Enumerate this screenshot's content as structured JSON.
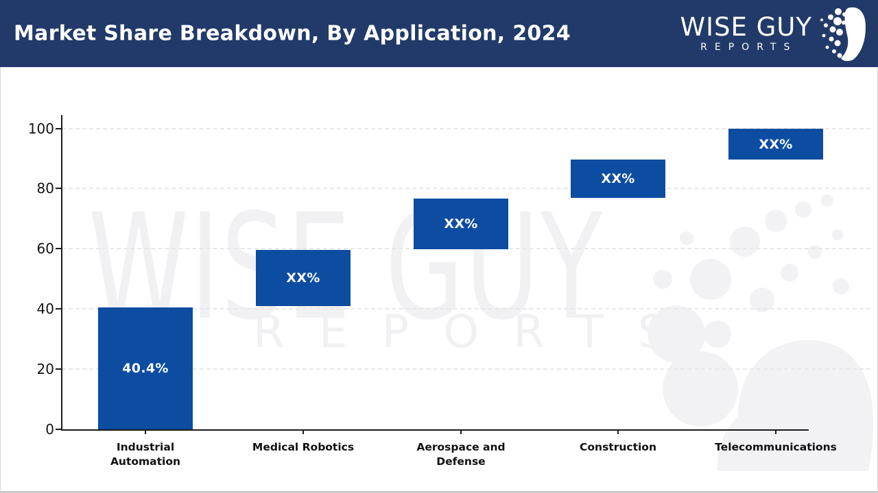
{
  "header": {
    "title": "Market Share Breakdown, By Application, 2024",
    "logo": {
      "name": "WISE GUY",
      "sub": "REPORTS"
    }
  },
  "watermark": {
    "line1": "WISE GUY",
    "line2": "REPORTS"
  },
  "chart_data": {
    "type": "bar",
    "variant": "waterfall",
    "title": "Market Share Breakdown, By Application, 2024",
    "categories": [
      "Industrial\nAutomation",
      "Medical Robotics",
      "Aerospace and\nDefense",
      "Construction",
      "Telecommunications"
    ],
    "segments": [
      {
        "category": "Industrial Automation",
        "start": 0,
        "end": 40.4,
        "label": "40.4%"
      },
      {
        "category": "Medical Robotics",
        "start": 40.9,
        "end": 59.5,
        "label": "XX%"
      },
      {
        "category": "Aerospace and Defense",
        "start": 59.9,
        "end": 76.6,
        "label": "XX%"
      },
      {
        "category": "Construction",
        "start": 76.9,
        "end": 89.6,
        "label": "XX%"
      },
      {
        "category": "Telecommunications",
        "start": 89.7,
        "end": 99.8,
        "label": "XX%"
      }
    ],
    "ylim": [
      0,
      100
    ],
    "yticks": [
      0,
      20,
      40,
      60,
      80,
      100
    ],
    "xlabel": "",
    "ylabel": "",
    "grid": "dashed-horizontal",
    "legend": "none",
    "colors": {
      "bar": "#0d4da1",
      "bar_label": "#ffffff",
      "axis": "#1a1a1a",
      "grid": "#e7e7e7",
      "header_bg": "#213a69",
      "watermark": "#f1f1f3"
    }
  }
}
